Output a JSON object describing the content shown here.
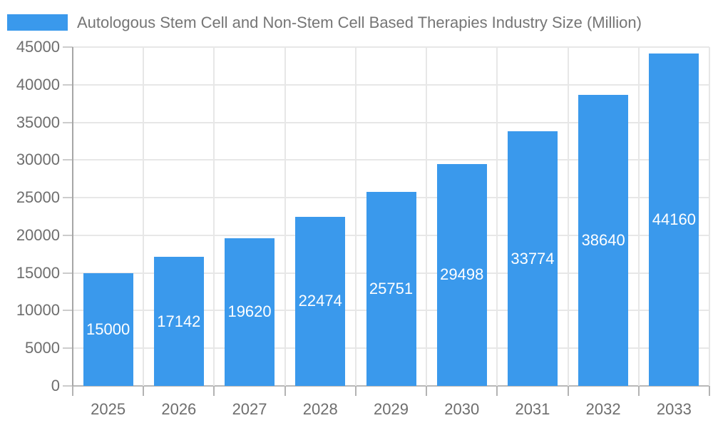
{
  "legend": {
    "label": "Autologous Stem Cell and Non-Stem Cell Based Therapies Industry Size (Million)"
  },
  "chart_data": {
    "type": "bar",
    "title": "Autologous Stem Cell and Non-Stem Cell Based Therapies Industry Size (Million)",
    "categories": [
      "2025",
      "2026",
      "2027",
      "2028",
      "2029",
      "2030",
      "2031",
      "2032",
      "2033"
    ],
    "values": [
      15000,
      17142,
      19620,
      22474,
      25751,
      29498,
      33774,
      38640,
      44160
    ],
    "xlabel": "",
    "ylabel": "",
    "ylim": [
      0,
      45000
    ],
    "ytick_step": 5000,
    "yticks": [
      0,
      5000,
      10000,
      15000,
      20000,
      25000,
      30000,
      35000,
      40000,
      45000
    ],
    "grid": true,
    "legend_position": "top-left",
    "bar_color": "#3A99EC",
    "value_labels_inside": true,
    "value_label_color": "#FFFFFF"
  },
  "colors": {
    "background": "#FFFFFF",
    "grid": "#E7E7E7",
    "axis_line": "#A6A6A6",
    "baseline": "#B8B8B8",
    "tick": "#CCCCCC",
    "x_tick": "#B3B3B3",
    "axis_text": "#6E6E6E",
    "title_text": "#757575"
  }
}
